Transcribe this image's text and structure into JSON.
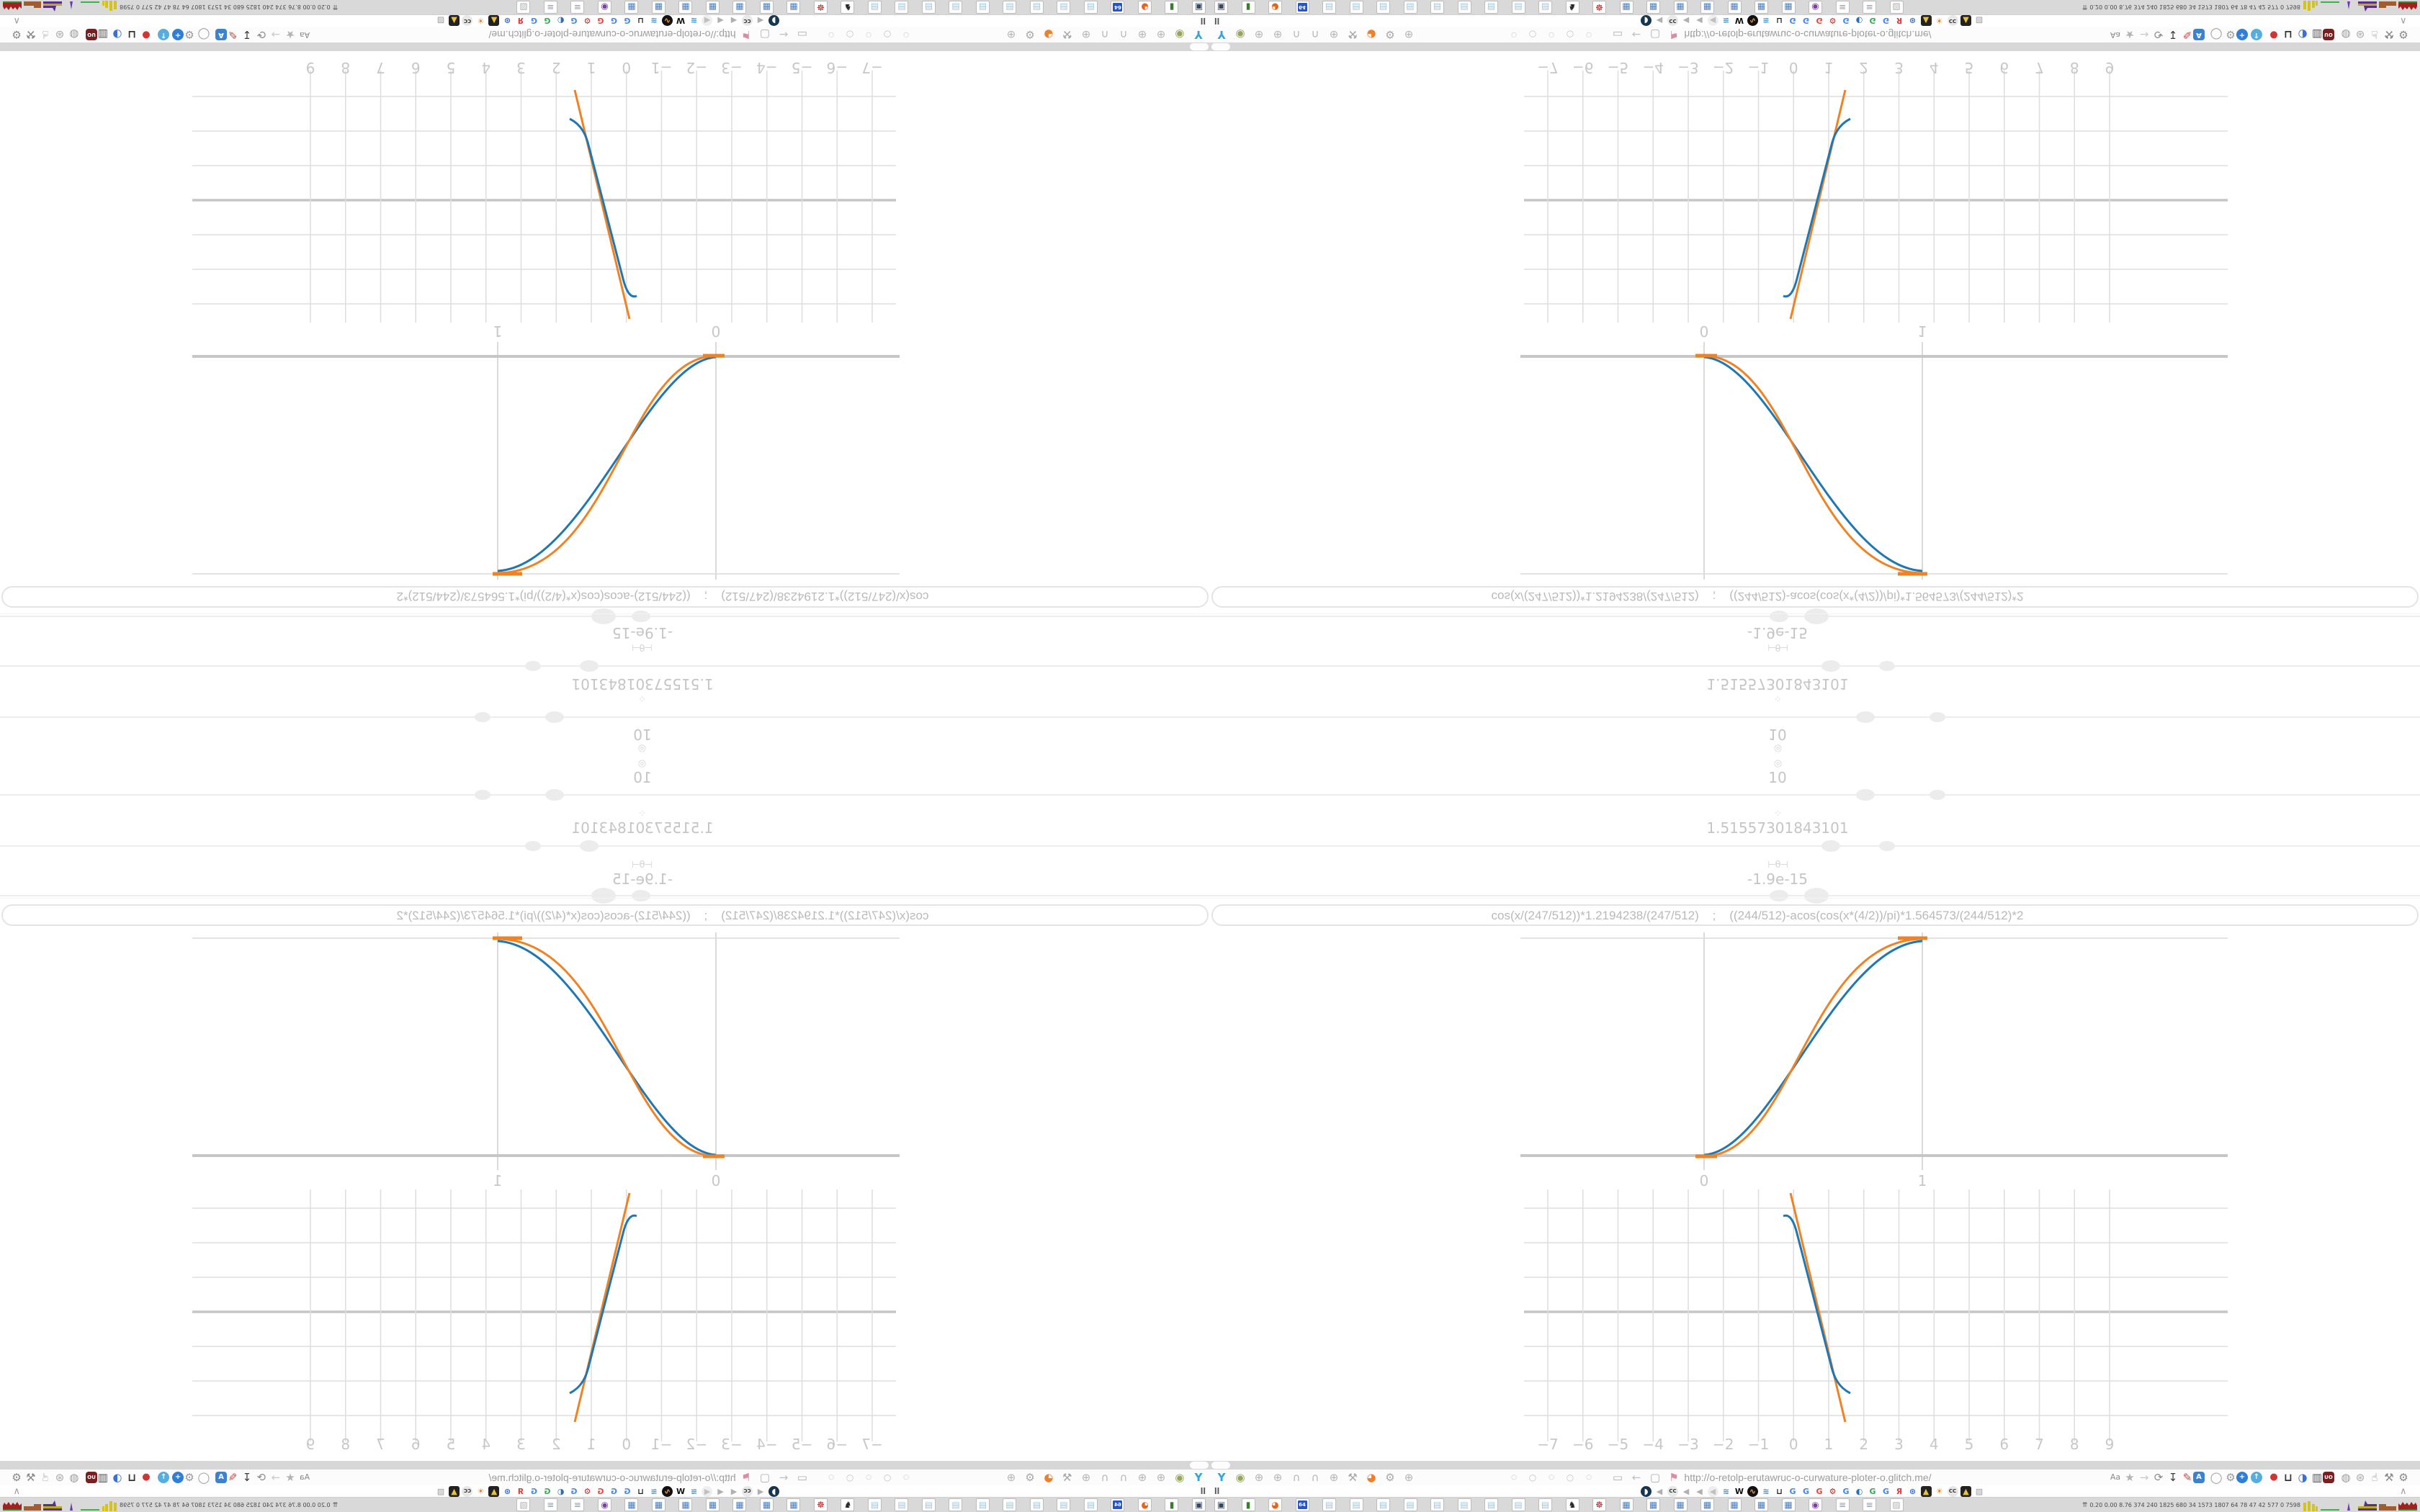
{
  "app": {
    "url": "http://o-retolp-erutawruc-o-curwature-ploter-o.glitch.me/",
    "page_background": "#ffffff"
  },
  "sliders": {
    "rows": [
      {
        "icon_name": "target-rings-icon",
        "icon_glyph": "◎",
        "value": "10",
        "handles": [
          {
            "x": 910,
            "w": 26,
            "h": 16
          },
          {
            "x": 1010,
            "w": 22,
            "h": 14
          }
        ]
      },
      {
        "icon_name": "clover-dots-icon",
        "icon_glyph": "⁘",
        "value": "1.51557301843101",
        "handles": [
          {
            "x": 862,
            "w": 26,
            "h": 16
          },
          {
            "x": 940,
            "w": 22,
            "h": 14
          }
        ]
      },
      {
        "icon_name": "range-theta-icon",
        "icon_glyph": "⊢θ⊣",
        "value": "-1.9e-15",
        "handles": [
          {
            "x": 790,
            "w": 26,
            "h": 16
          },
          {
            "x": 842,
            "w": 34,
            "h": 22
          }
        ]
      }
    ]
  },
  "formula": {
    "text": "cos(x/(247/512))*1.2194238/(247/512)    ;    ((244/512)-acos(cos(x*(4/2))/pi)*1.564573/(244/512)*2"
  },
  "chart_data": [
    {
      "type": "line",
      "title": "",
      "xlabel": "",
      "ylabel": "",
      "x_ticks": [
        0,
        1
      ],
      "x_tick_labels": [
        "0",
        "1"
      ],
      "xlim": [
        -0.85,
        1.4
      ],
      "ylim": [
        0,
        1
      ],
      "grid": "vertical gridlines at x=0 and x=1; horizontal rules at y=0 (thick) and y=1 (thin)",
      "legend": "none",
      "series": [
        {
          "name": "blue-curve",
          "color": "#1f77b4",
          "points": [
            [
              0,
              0
            ],
            [
              0.1,
              0.03
            ],
            [
              0.25,
              0.13
            ],
            [
              0.5,
              0.5
            ],
            [
              0.75,
              0.87
            ],
            [
              0.9,
              0.97
            ],
            [
              1,
              1
            ]
          ]
        },
        {
          "name": "orange-curve",
          "color": "#ef8323",
          "points": [
            [
              0,
              0
            ],
            [
              0.1,
              0.01
            ],
            [
              0.25,
              0.1
            ],
            [
              0.5,
              0.5
            ],
            [
              0.75,
              0.9
            ],
            [
              0.9,
              0.99
            ],
            [
              1,
              1
            ]
          ]
        }
      ]
    },
    {
      "type": "line",
      "title": "",
      "xlabel": "",
      "ylabel": "",
      "x_ticks": [
        -7,
        -6,
        -5,
        -4,
        -3,
        -2,
        -1,
        0,
        1,
        2,
        3,
        4,
        5,
        6,
        7,
        8,
        9
      ],
      "x_tick_labels": [
        "−7",
        "−6",
        "−5",
        "−4",
        "−3",
        "−2",
        "−1",
        "0",
        "1",
        "2",
        "3",
        "4",
        "5",
        "6",
        "7",
        "8",
        "9"
      ],
      "xlim": [
        -7.5,
        9.5
      ],
      "ylim": [
        -3.7,
        3.7
      ],
      "grid": "square grid, 1 unit spacing, thick horizontal line at y=0",
      "h_gridline_count": 7,
      "h_thick_index": 3,
      "legend": "none",
      "series": [
        {
          "name": "orange-tangent-line",
          "color": "#ef8323",
          "points": [
            [
              0,
              3.1
            ],
            [
              1.55,
              -3.2
            ]
          ]
        },
        {
          "name": "blue-curve",
          "color": "#1f77b4",
          "points": [
            [
              -0.05,
              2.55
            ],
            [
              0.1,
              2.3
            ],
            [
              1.4,
              -2.25
            ],
            [
              1.55,
              -2.5
            ]
          ]
        }
      ]
    }
  ],
  "status_bar": {
    "left_icons": [
      {
        "n": "pin-icon",
        "g": "Y",
        "c": "#2da3e0",
        "fw": "bold"
      },
      {
        "n": "olive-dot-icon",
        "g": "◉",
        "c": "#95a55a"
      },
      {
        "n": "globe-icon",
        "g": "⊕",
        "c": "#b5b5b5"
      },
      {
        "n": "globe-icon",
        "g": "⊕",
        "c": "#b5b5b5"
      },
      {
        "n": "gauge-icon",
        "g": "∩",
        "c": "#b5b5b5"
      },
      {
        "n": "gauge-icon",
        "g": "∩",
        "c": "#b5b5b5"
      },
      {
        "n": "globe-icon",
        "g": "⊕",
        "c": "#b5b5b5"
      },
      {
        "n": "wrench-icon",
        "g": "⚒",
        "c": "#a8a8a8"
      },
      {
        "n": "firefox-icon",
        "g": "◕",
        "c": "#ee7f2d"
      },
      {
        "n": "gear-icon",
        "g": "⚙",
        "c": "#a8a8a8"
      },
      {
        "n": "globe-icon",
        "g": "⊕",
        "c": "#b5b5b5"
      },
      {
        "n": "dot-circle-icon",
        "g": "○",
        "c": "#cccccc",
        "sp": 120,
        "fs": 9
      },
      {
        "n": "dot-circle-icon",
        "g": "○",
        "c": "#c4c4c4",
        "fs": 12
      },
      {
        "n": "dot-circle-icon",
        "g": "○",
        "c": "#cccccc",
        "fs": 9
      },
      {
        "n": "dot-circle-icon",
        "g": "○",
        "c": "#c4c4c4",
        "fs": 12
      },
      {
        "n": "dot-circle-icon",
        "g": "○",
        "c": "#cccccc",
        "fs": 9
      },
      {
        "n": "folder-icon",
        "g": "▭",
        "c": "#b0b0b0",
        "sp": 14
      },
      {
        "n": "back-arrow-icon",
        "g": "←",
        "c": "#c0c0c0"
      },
      {
        "n": "shield-icon",
        "g": "▢",
        "c": "#b0b0b0"
      },
      {
        "n": "blocked-flag-icon",
        "g": "⚑",
        "c": "#d98ca6"
      }
    ],
    "right_icons": [
      {
        "n": "translate-icon",
        "g": "Aa",
        "c": "#8a8a8a",
        "fs": 11
      },
      {
        "n": "star-icon",
        "g": "★",
        "c": "#b3b3b3"
      },
      {
        "n": "forward-arrow-icon",
        "g": "→",
        "c": "#c8c8c8"
      },
      {
        "n": "reload-icon",
        "g": "⟳",
        "c": "#8a8a8a"
      },
      {
        "n": "download-icon",
        "g": "↧",
        "c": "#3a3a3a"
      },
      {
        "n": "crayon-icon",
        "g": "✎",
        "c": "#cc4444"
      },
      {
        "n": "translate-badge-icon",
        "g": "A",
        "c": "#ffffff",
        "b": "#3b82d0",
        "badge": 1
      },
      {
        "n": "oval-icon",
        "g": "◯",
        "c": "#9a9a9a"
      },
      {
        "n": "gear-icon",
        "g": "⚙",
        "c": "#9a9a9a"
      },
      {
        "n": "add-circle-icon",
        "g": "+",
        "c": "#ffffff",
        "b": "#2f7fd6",
        "badge": 1,
        "round": 1
      },
      {
        "n": "update-circle-icon",
        "g": "↑",
        "c": "#ffffff",
        "b": "#56aede",
        "badge": 1,
        "round": 1
      },
      {
        "n": "record-circle-icon",
        "g": "●",
        "c": "#d23333",
        "fs": 13
      },
      {
        "n": "trash-icon",
        "g": "⊔",
        "c": "#333333",
        "fw": "bold"
      },
      {
        "n": "wayback-globe-icon",
        "g": "◑",
        "c": "#3a6fd8"
      },
      {
        "n": "archive-building-icon",
        "g": "▥",
        "c": "#555555"
      },
      {
        "n": "ublock-icon",
        "g": "UO",
        "c": "#ffffff",
        "b": "#7a1f1f",
        "badge": 1,
        "fs": 7
      },
      {
        "n": "shield-icon",
        "g": "◍",
        "c": "#9a9a9a"
      },
      {
        "n": "dotted-globe-icon",
        "g": "⊛",
        "c": "#aaaaaa"
      },
      {
        "n": "thumbs-up-icon",
        "g": "☝",
        "c": "#888888"
      },
      {
        "n": "wrench-icon",
        "g": "⚒",
        "c": "#888888"
      },
      {
        "n": "gear-icon",
        "g": "⚙",
        "c": "#888888"
      },
      {
        "n": "tray-dots-icon",
        "g": "∶",
        "c": "#2bbf9f",
        "sp": 10
      }
    ]
  },
  "bookmarks_bar": {
    "pause_label": "II",
    "collapse_glyph": "∧",
    "icons": [
      {
        "n": "media-player-favicon",
        "g": "◗",
        "c": "#ffffff",
        "b": "#16354f",
        "round": 1
      },
      {
        "n": "muted-speaker-favicon",
        "g": "◀",
        "c": "#b0b0b0"
      },
      {
        "n": "cc-favicon",
        "g": "CC",
        "c": "#333333",
        "b": "#e8e8e8",
        "round": 1,
        "fs": 7
      },
      {
        "n": "muted-speaker-favicon",
        "g": "◀",
        "c": "#b0b0b0"
      },
      {
        "n": "muted-speaker-favicon",
        "g": "◀",
        "c": "#b0b0b0"
      },
      {
        "n": "muted-speaker-favicon",
        "g": "◀",
        "c": "#c0c0c0",
        "b": "#eeeeee",
        "round": 1
      },
      {
        "n": "wave-globe-favicon",
        "g": "≋",
        "c": "#3f8fd2"
      },
      {
        "n": "wikipedia-favicon",
        "g": "W",
        "c": "#111111"
      },
      {
        "n": "pulse-favicon",
        "g": "∿",
        "c": "#e8a33d",
        "b": "#111111",
        "round": 1
      },
      {
        "n": "wave-globe-favicon",
        "g": "≋",
        "c": "#3f8fd2"
      },
      {
        "n": "barrel-favicon",
        "g": "⊔",
        "c": "#222222"
      },
      {
        "n": "translate-g-favicon",
        "g": "G",
        "c": "#4285f4"
      },
      {
        "n": "google-favicon",
        "g": "G",
        "c": "#4285f4"
      },
      {
        "n": "google-favicon",
        "g": "G",
        "c": "#ea4335"
      },
      {
        "n": "gear-flower-favicon",
        "g": "⚙",
        "c": "#cc2222"
      },
      {
        "n": "google-favicon",
        "g": "G",
        "c": "#4285f4"
      },
      {
        "n": "droplet-favicon",
        "g": "◐",
        "c": "#2b6fb3"
      },
      {
        "n": "google-favicon",
        "g": "G",
        "c": "#34a853"
      },
      {
        "n": "google-favicon",
        "g": "G",
        "c": "#4285f4"
      },
      {
        "n": "yandex-favicon",
        "g": "Я",
        "c": "#e03c3c"
      },
      {
        "n": "dotted-globe-favicon",
        "g": "⊛",
        "c": "#3a6fd8"
      },
      {
        "n": "photo-favicon",
        "g": "▲",
        "c": "#e8c23a",
        "b": "#222222"
      },
      {
        "n": "sun-favicon",
        "g": "☀",
        "c": "#e87f1e"
      },
      {
        "n": "cc-favicon",
        "g": "CC",
        "c": "#333333",
        "b": "#e8e8e8",
        "round": 1,
        "fs": 7
      },
      {
        "n": "photo-favicon",
        "g": "▲",
        "c": "#e8c23a",
        "b": "#222222"
      },
      {
        "n": "hourglass-favicon",
        "g": "▨",
        "c": "#999999"
      }
    ]
  },
  "taskbar": {
    "tiles": [
      {
        "n": "taskbar-system-monitor",
        "g": "▣",
        "c": "#34495e"
      },
      {
        "n": "taskbar-cartridge",
        "g": "▮",
        "c": "#3a7d2c"
      },
      {
        "n": "taskbar-firefox",
        "g": "◕",
        "c": "#e8641b"
      },
      {
        "n": "taskbar-floppy-64",
        "label": "64"
      },
      {
        "n": "taskbar-notepad",
        "g": "▤",
        "c": "#9fc6d8"
      },
      {
        "n": "taskbar-notepad",
        "g": "▤",
        "c": "#9fc6d8"
      },
      {
        "n": "taskbar-notepad",
        "g": "▤",
        "c": "#9fc6d8"
      },
      {
        "n": "taskbar-notepad",
        "g": "▤",
        "c": "#9fc6d8"
      },
      {
        "n": "taskbar-notepad",
        "g": "▤",
        "c": "#9fc6d8"
      },
      {
        "n": "taskbar-notepad",
        "g": "▤",
        "c": "#9fc6d8"
      },
      {
        "n": "taskbar-notepad",
        "g": "▤",
        "c": "#9fc6d8"
      },
      {
        "n": "taskbar-notepad",
        "g": "▤",
        "c": "#9fc6d8"
      },
      {
        "n": "taskbar-notepad",
        "g": "▤",
        "c": "#9fc6d8"
      },
      {
        "n": "taskbar-chess",
        "g": "♞",
        "c": "#222222"
      },
      {
        "n": "taskbar-wheel",
        "g": "☸",
        "c": "#c22222"
      },
      {
        "n": "taskbar-calculator",
        "g": "▦",
        "c": "#4a7dbf"
      },
      {
        "n": "taskbar-calculator",
        "g": "▦",
        "c": "#4a7dbf"
      },
      {
        "n": "taskbar-calculator",
        "g": "▦",
        "c": "#4a7dbf"
      },
      {
        "n": "taskbar-calculator",
        "g": "▦",
        "c": "#4a7dbf"
      },
      {
        "n": "taskbar-calculator",
        "g": "▦",
        "c": "#4a7dbf"
      },
      {
        "n": "taskbar-calculator",
        "g": "▦",
        "c": "#4a7dbf"
      },
      {
        "n": "taskbar-calculator",
        "g": "▦",
        "c": "#4a7dbf"
      },
      {
        "n": "taskbar-owl",
        "g": "◉",
        "c": "#7b3fa0"
      },
      {
        "n": "taskbar-scroll",
        "g": "≡",
        "c": "#8a97a8"
      },
      {
        "n": "taskbar-scroll",
        "g": "≡",
        "c": "#8a97a8"
      },
      {
        "n": "taskbar-stamp",
        "g": "▨",
        "c": "#b0b0b0"
      }
    ],
    "sysmon": {
      "arrow_glyph": "⇈",
      "stats": "0.20 0.00 8.76  374 240 1825 680  34  1573 1807  64  78  47  42  577 0 7598",
      "graph_colors": [
        "#d6c31a",
        "#3ab54a",
        "#6a3ab5",
        "#bbae12",
        "#a15c2f",
        "#a51f1f"
      ]
    }
  }
}
